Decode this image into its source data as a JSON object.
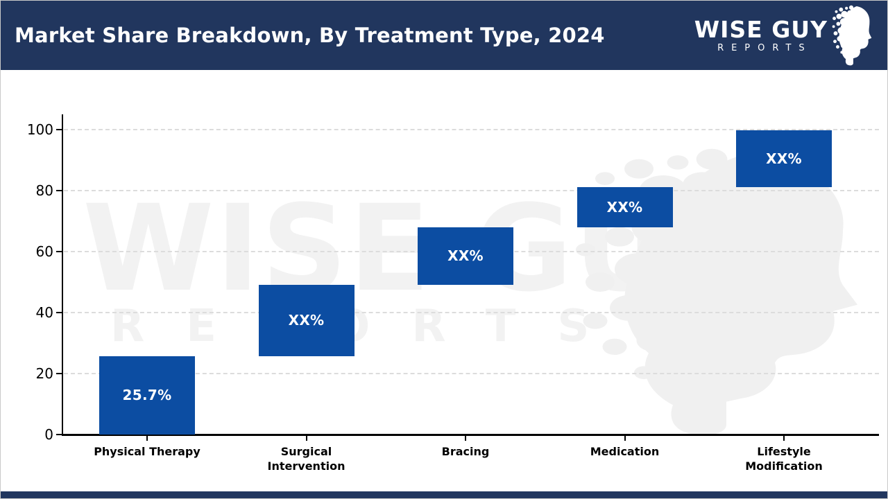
{
  "page": {
    "background": "#FFFFFF",
    "border_color": "#C9C9C9"
  },
  "header": {
    "bg_color": "#21365E",
    "title": "Market Share Breakdown, By Treatment Type, 2024",
    "logo": {
      "line1": "WISE GUY",
      "line2": "REPORTS"
    }
  },
  "watermark": {
    "line1": "WISE GUY",
    "line2": "REPORTS"
  },
  "footer": {
    "bg_color": "#21365E"
  },
  "chart_data": {
    "type": "bar",
    "subtype": "floating-waterfall",
    "title": "Market Share Breakdown, By Treatment Type, 2024",
    "categories": [
      "Physical Therapy",
      "Surgical\nIntervention",
      "Bracing",
      "Medication",
      "Lifestyle\nModification"
    ],
    "bars": [
      {
        "category": "Physical Therapy",
        "start": 0,
        "end": 25.7,
        "label": "25.7%"
      },
      {
        "category": "Surgical Intervention",
        "start": 25.7,
        "end": 49.2,
        "label": "XX%"
      },
      {
        "category": "Bracing",
        "start": 49.2,
        "end": 68.0,
        "label": "XX%"
      },
      {
        "category": "Medication",
        "start": 68.0,
        "end": 81.2,
        "label": "XX%"
      },
      {
        "category": "Lifestyle Modification",
        "start": 81.2,
        "end": 99.8,
        "label": "XX%"
      }
    ],
    "ylim": [
      0,
      100
    ],
    "yticks": [
      0,
      20,
      40,
      60,
      80,
      100
    ],
    "xlabel": "",
    "ylabel": "",
    "grid": "horizontal-dashed",
    "legend": "none",
    "bar_color": "#0C4DA2",
    "bar_label_color": "#FFFFFF",
    "axis_color": "#000000",
    "gridline_color": "#DCDCDC"
  }
}
